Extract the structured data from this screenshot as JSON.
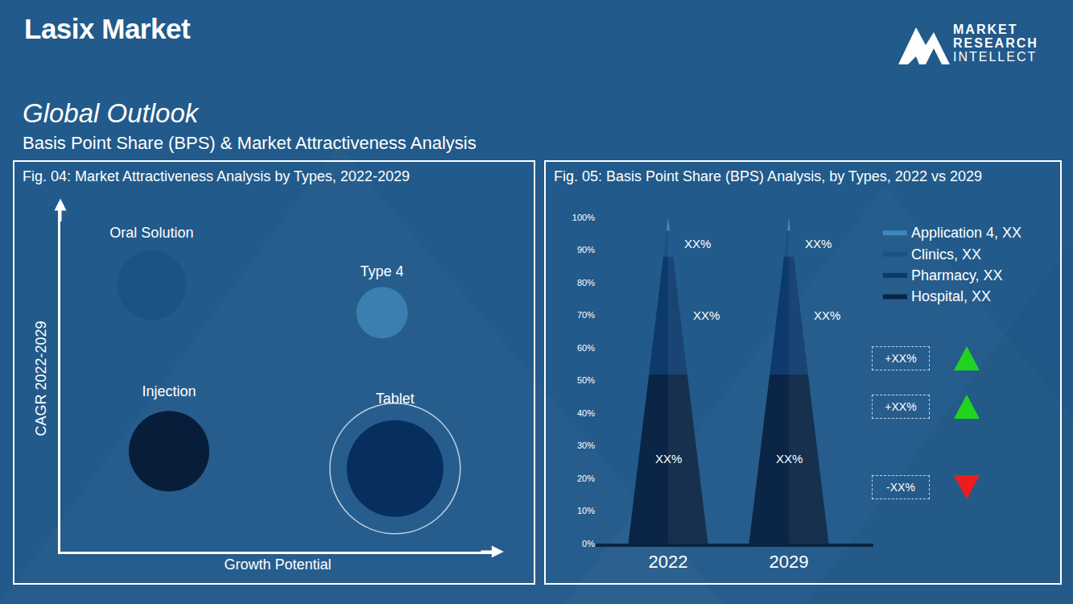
{
  "header": {
    "title": "Lasix Market",
    "logo": [
      "MARKET",
      "RESEARCH",
      "INTELLECT"
    ],
    "section": "Global Outlook",
    "subtitle": "Basis Point Share (BPS) & Market Attractiveness  Analysis"
  },
  "chart_data": [
    {
      "type": "bubble",
      "title": "Fig. 04: Market Attractiveness Analysis by Types, 2022-2029",
      "x_label": "Growth Potential",
      "y_label": "CAGR 2022-2029",
      "categories": [
        "Oral Solution",
        "Type 4",
        "Injection",
        "Tablet"
      ],
      "x": [
        2.1,
        7.4,
        2.5,
        7.7
      ],
      "values": [
        7.7,
        6.9,
        2.9,
        2.4
      ],
      "sizes": [
        86,
        64,
        100,
        120
      ],
      "colors": [
        "#1d5286",
        "#3a7fb0",
        "#071d3a",
        "#062f5e"
      ],
      "xlim": [
        0,
        10
      ],
      "ylim": [
        0,
        10
      ],
      "tick_labels": false,
      "grid": false
    },
    {
      "type": "bar",
      "title": "Fig. 05: Basis Point Share (BPS) Analysis, by Types, 2022 vs 2029",
      "stacked": true,
      "categories": [
        "2022",
        "2029"
      ],
      "series": [
        {
          "name": "Hospital, XX",
          "color": "#0a2545",
          "values": [
            52,
            52
          ],
          "value_labels": [
            "XX%",
            "XX%"
          ]
        },
        {
          "name": "Pharmacy, XX",
          "color": "#0d3a6c",
          "values": [
            36,
            36
          ],
          "value_labels": [
            "XX%",
            "XX%"
          ]
        },
        {
          "name": "Clinics, XX",
          "color": "#1a5289",
          "values": [
            8,
            8
          ],
          "value_labels": [
            "XX%",
            "XX%"
          ]
        },
        {
          "name": "Application 4, XX",
          "color": "#3b88bf",
          "values": [
            4,
            4
          ]
        }
      ],
      "ylim": [
        0,
        100
      ],
      "yticks": [
        {
          "value": 0,
          "label": "0%"
        },
        {
          "value": 10,
          "label": "10%"
        },
        {
          "value": 20,
          "label": "20%"
        },
        {
          "value": 30,
          "label": "30%"
        },
        {
          "value": 40,
          "label": "40%"
        },
        {
          "value": 50,
          "label": "50%"
        },
        {
          "value": 60,
          "label": "60%"
        },
        {
          "value": 70,
          "label": "70%"
        },
        {
          "value": 80,
          "label": "80%"
        },
        {
          "value": 90,
          "label": "90%"
        },
        {
          "value": 100,
          "label": "100%"
        }
      ],
      "grid": false,
      "legend": "right",
      "data_labels": true,
      "annotations": [
        "+XX%",
        "+XX%",
        "-XX%"
      ]
    }
  ]
}
